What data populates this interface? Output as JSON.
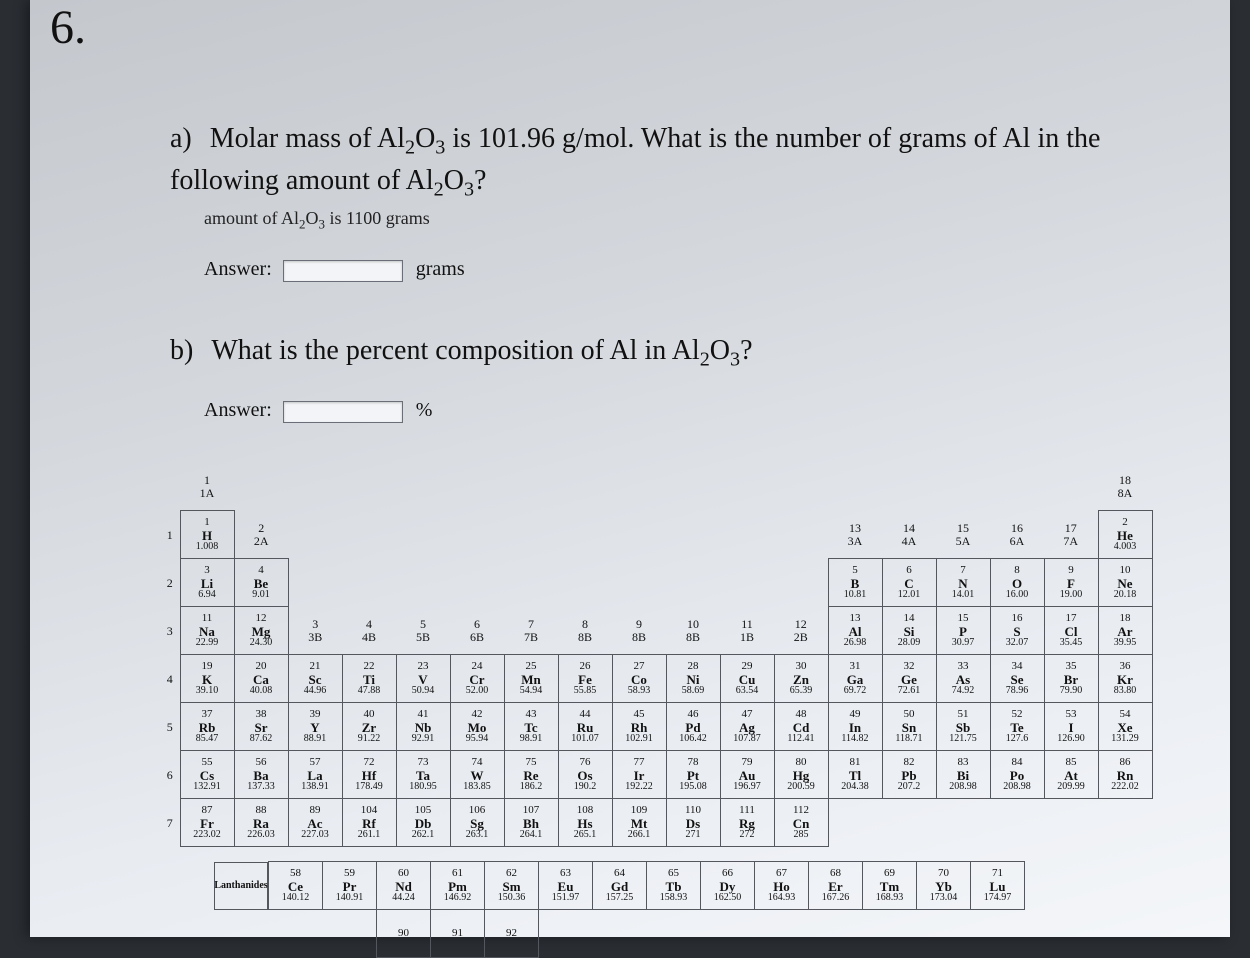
{
  "question_number": "6.",
  "a": {
    "letter": "a)",
    "text_pre": "Molar mass of Al",
    "sub1": "2",
    "mid1": "O",
    "sub2": "3",
    "mid2": " is 101.96 g/mol. What is the number of grams of Al in the following amount of Al",
    "sub3": "2",
    "mid3": "O",
    "sub4": "3",
    "end": "?",
    "amount_pre": "amount of Al",
    "amount_sub1": "2",
    "amount_mid": "O",
    "amount_sub2": "3",
    "amount_end": " is 1100 grams",
    "answer_label": "Answer:",
    "answer_unit": "grams"
  },
  "b": {
    "letter": "b)",
    "text_pre": "What is the percent composition of Al in Al",
    "sub1": "2",
    "mid1": "O",
    "sub2": "3",
    "end": "?",
    "answer_label": "Answer:",
    "answer_unit": "%"
  },
  "pt": {
    "group_labels_top": [
      "1",
      "",
      "",
      "",
      "",
      "",
      "",
      "",
      "",
      "",
      "",
      "",
      "",
      "",
      "",
      "",
      "",
      "18"
    ],
    "group_labels_sub": [
      "1A",
      "",
      "",
      "",
      "",
      "",
      "",
      "",
      "",
      "",
      "",
      "",
      "",
      "",
      "",
      "",
      "",
      "8A"
    ],
    "mid_group_nums": [
      "",
      "2",
      "",
      "",
      "",
      "",
      "",
      "",
      "",
      "",
      "",
      "",
      "13",
      "14",
      "15",
      "16",
      "17",
      ""
    ],
    "mid_group_subs": [
      "",
      "2A",
      "",
      "",
      "",
      "",
      "",
      "",
      "",
      "",
      "",
      "",
      "3A",
      "4A",
      "5A",
      "6A",
      "7A",
      ""
    ],
    "tm_group_nums": [
      "3",
      "4",
      "5",
      "6",
      "7",
      "8",
      "9",
      "10",
      "11",
      "12"
    ],
    "tm_group_subs": [
      "3B",
      "4B",
      "5B",
      "6B",
      "7B",
      "8B",
      "8B",
      "8B",
      "1B",
      "2B"
    ],
    "periods": [
      "1",
      "2",
      "3",
      "4",
      "5",
      "6",
      "7"
    ],
    "cells": {
      "H": {
        "n": "1",
        "s": "H",
        "m": "1.008"
      },
      "He": {
        "n": "2",
        "s": "He",
        "m": "4.003"
      },
      "Li": {
        "n": "3",
        "s": "Li",
        "m": "6.94"
      },
      "Be": {
        "n": "4",
        "s": "Be",
        "m": "9.01"
      },
      "B": {
        "n": "5",
        "s": "B",
        "m": "10.81"
      },
      "C": {
        "n": "6",
        "s": "C",
        "m": "12.01"
      },
      "N": {
        "n": "7",
        "s": "N",
        "m": "14.01"
      },
      "O": {
        "n": "8",
        "s": "O",
        "m": "16.00"
      },
      "F": {
        "n": "9",
        "s": "F",
        "m": "19.00"
      },
      "Ne": {
        "n": "10",
        "s": "Ne",
        "m": "20.18"
      },
      "Na": {
        "n": "11",
        "s": "Na",
        "m": "22.99"
      },
      "Mg": {
        "n": "12",
        "s": "Mg",
        "m": "24.30"
      },
      "Al": {
        "n": "13",
        "s": "Al",
        "m": "26.98"
      },
      "Si": {
        "n": "14",
        "s": "Si",
        "m": "28.09"
      },
      "P": {
        "n": "15",
        "s": "P",
        "m": "30.97"
      },
      "S": {
        "n": "16",
        "s": "S",
        "m": "32.07"
      },
      "Cl": {
        "n": "17",
        "s": "Cl",
        "m": "35.45"
      },
      "Ar": {
        "n": "18",
        "s": "Ar",
        "m": "39.95"
      },
      "K": {
        "n": "19",
        "s": "K",
        "m": "39.10"
      },
      "Ca": {
        "n": "20",
        "s": "Ca",
        "m": "40.08"
      },
      "Sc": {
        "n": "21",
        "s": "Sc",
        "m": "44.96"
      },
      "Ti": {
        "n": "22",
        "s": "Ti",
        "m": "47.88"
      },
      "V": {
        "n": "23",
        "s": "V",
        "m": "50.94"
      },
      "Cr": {
        "n": "24",
        "s": "Cr",
        "m": "52.00"
      },
      "Mn": {
        "n": "25",
        "s": "Mn",
        "m": "54.94"
      },
      "Fe": {
        "n": "26",
        "s": "Fe",
        "m": "55.85"
      },
      "Co": {
        "n": "27",
        "s": "Co",
        "m": "58.93"
      },
      "Ni": {
        "n": "28",
        "s": "Ni",
        "m": "58.69"
      },
      "Cu": {
        "n": "29",
        "s": "Cu",
        "m": "63.54"
      },
      "Zn": {
        "n": "30",
        "s": "Zn",
        "m": "65.39"
      },
      "Ga": {
        "n": "31",
        "s": "Ga",
        "m": "69.72"
      },
      "Ge": {
        "n": "32",
        "s": "Ge",
        "m": "72.61"
      },
      "As": {
        "n": "33",
        "s": "As",
        "m": "74.92"
      },
      "Se": {
        "n": "34",
        "s": "Se",
        "m": "78.96"
      },
      "Br": {
        "n": "35",
        "s": "Br",
        "m": "79.90"
      },
      "Kr": {
        "n": "36",
        "s": "Kr",
        "m": "83.80"
      },
      "Rb": {
        "n": "37",
        "s": "Rb",
        "m": "85.47"
      },
      "Sr": {
        "n": "38",
        "s": "Sr",
        "m": "87.62"
      },
      "Y": {
        "n": "39",
        "s": "Y",
        "m": "88.91"
      },
      "Zr": {
        "n": "40",
        "s": "Zr",
        "m": "91.22"
      },
      "Nb": {
        "n": "41",
        "s": "Nb",
        "m": "92.91"
      },
      "Mo": {
        "n": "42",
        "s": "Mo",
        "m": "95.94"
      },
      "Tc": {
        "n": "43",
        "s": "Tc",
        "m": "98.91"
      },
      "Ru": {
        "n": "44",
        "s": "Ru",
        "m": "101.07"
      },
      "Rh": {
        "n": "45",
        "s": "Rh",
        "m": "102.91"
      },
      "Pd": {
        "n": "46",
        "s": "Pd",
        "m": "106.42"
      },
      "Ag": {
        "n": "47",
        "s": "Ag",
        "m": "107.87"
      },
      "Cd": {
        "n": "48",
        "s": "Cd",
        "m": "112.41"
      },
      "In": {
        "n": "49",
        "s": "In",
        "m": "114.82"
      },
      "Sn": {
        "n": "50",
        "s": "Sn",
        "m": "118.71"
      },
      "Sb": {
        "n": "51",
        "s": "Sb",
        "m": "121.75"
      },
      "Te": {
        "n": "52",
        "s": "Te",
        "m": "127.6"
      },
      "I": {
        "n": "53",
        "s": "I",
        "m": "126.90"
      },
      "Xe": {
        "n": "54",
        "s": "Xe",
        "m": "131.29"
      },
      "Cs": {
        "n": "55",
        "s": "Cs",
        "m": "132.91"
      },
      "Ba": {
        "n": "56",
        "s": "Ba",
        "m": "137.33"
      },
      "La": {
        "n": "57",
        "s": "La",
        "m": "138.91"
      },
      "Hf": {
        "n": "72",
        "s": "Hf",
        "m": "178.49"
      },
      "Ta": {
        "n": "73",
        "s": "Ta",
        "m": "180.95"
      },
      "W": {
        "n": "74",
        "s": "W",
        "m": "183.85"
      },
      "Re": {
        "n": "75",
        "s": "Re",
        "m": "186.2"
      },
      "Os": {
        "n": "76",
        "s": "Os",
        "m": "190.2"
      },
      "Ir": {
        "n": "77",
        "s": "Ir",
        "m": "192.22"
      },
      "Pt": {
        "n": "78",
        "s": "Pt",
        "m": "195.08"
      },
      "Au": {
        "n": "79",
        "s": "Au",
        "m": "196.97"
      },
      "Hg": {
        "n": "80",
        "s": "Hg",
        "m": "200.59"
      },
      "Tl": {
        "n": "81",
        "s": "Tl",
        "m": "204.38"
      },
      "Pb": {
        "n": "82",
        "s": "Pb",
        "m": "207.2"
      },
      "Bi": {
        "n": "83",
        "s": "Bi",
        "m": "208.98"
      },
      "Po": {
        "n": "84",
        "s": "Po",
        "m": "208.98"
      },
      "At": {
        "n": "85",
        "s": "At",
        "m": "209.99"
      },
      "Rn": {
        "n": "86",
        "s": "Rn",
        "m": "222.02"
      },
      "Fr": {
        "n": "87",
        "s": "Fr",
        "m": "223.02"
      },
      "Ra": {
        "n": "88",
        "s": "Ra",
        "m": "226.03"
      },
      "Ac": {
        "n": "89",
        "s": "Ac",
        "m": "227.03"
      },
      "Rf": {
        "n": "104",
        "s": "Rf",
        "m": "261.1"
      },
      "Db": {
        "n": "105",
        "s": "Db",
        "m": "262.1"
      },
      "Sg": {
        "n": "106",
        "s": "Sg",
        "m": "263.1"
      },
      "Bh": {
        "n": "107",
        "s": "Bh",
        "m": "264.1"
      },
      "Hs": {
        "n": "108",
        "s": "Hs",
        "m": "265.1"
      },
      "Mt": {
        "n": "109",
        "s": "Mt",
        "m": "266.1"
      },
      "Ds": {
        "n": "110",
        "s": "Ds",
        "m": "271"
      },
      "Rg": {
        "n": "111",
        "s": "Rg",
        "m": "272"
      },
      "Cn": {
        "n": "112",
        "s": "Cn",
        "m": "285"
      }
    },
    "lanth_label": "Lanthanides",
    "lanth": [
      {
        "n": "58",
        "s": "Ce",
        "m": "140.12"
      },
      {
        "n": "59",
        "s": "Pr",
        "m": "140.91"
      },
      {
        "n": "60",
        "s": "Nd",
        "m": "44.24"
      },
      {
        "n": "61",
        "s": "Pm",
        "m": "146.92"
      },
      {
        "n": "62",
        "s": "Sm",
        "m": "150.36"
      },
      {
        "n": "63",
        "s": "Eu",
        "m": "151.97"
      },
      {
        "n": "64",
        "s": "Gd",
        "m": "157.25"
      },
      {
        "n": "65",
        "s": "Tb",
        "m": "158.93"
      },
      {
        "n": "66",
        "s": "Dy",
        "m": "162.50"
      },
      {
        "n": "67",
        "s": "Ho",
        "m": "164.93"
      },
      {
        "n": "68",
        "s": "Er",
        "m": "167.26"
      },
      {
        "n": "69",
        "s": "Tm",
        "m": "168.93"
      },
      {
        "n": "70",
        "s": "Yb",
        "m": "173.04"
      },
      {
        "n": "71",
        "s": "Lu",
        "m": "174.97"
      }
    ],
    "act_nums": [
      "90",
      "91",
      "92"
    ]
  }
}
